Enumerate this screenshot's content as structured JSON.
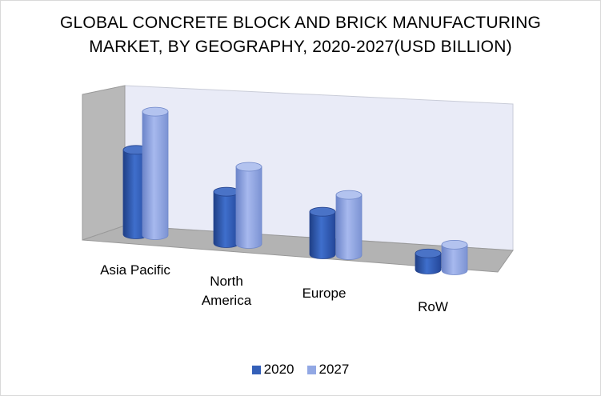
{
  "chart_data": {
    "type": "bar",
    "title_lines": [
      "GLOBAL CONCRETE BLOCK AND BRICK MANUFACTURING",
      "MARKET, BY GEOGRAPHY, 2020-2027(USD BILLION)"
    ],
    "categories": [
      [
        "Asia Pacific"
      ],
      [
        "North",
        "America"
      ],
      [
        "Europe"
      ],
      [
        "RoW"
      ]
    ],
    "series": [
      {
        "name": "2020",
        "values": [
          115,
          70,
          58,
          22
        ],
        "color": "#3460b8"
      },
      {
        "name": "2027",
        "values": [
          168,
          105,
          82,
          35
        ],
        "color": "#92a8e4"
      }
    ],
    "ylim": [
      0,
      185
    ],
    "grid": false,
    "legend_position": "bottom",
    "style": "3d-cylinder",
    "colors": {
      "back_wall": "#e9ebf7",
      "side_wall": "#b8b8b8",
      "floor": "#b3b3b3"
    }
  }
}
